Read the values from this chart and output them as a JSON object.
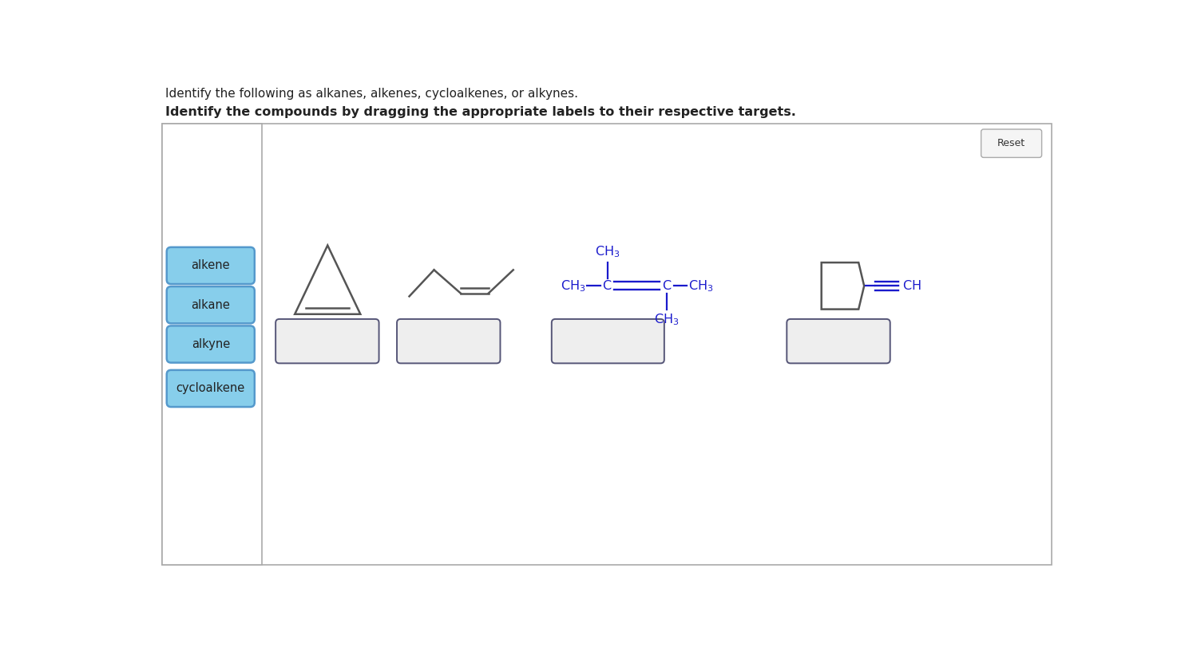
{
  "title_line1": "Identify the following as alkanes, alkenes, cycloalkenes, or alkynes.",
  "title_line2": "Identify the compounds by dragging the appropriate labels to their respective targets.",
  "bg_color": "#ffffff",
  "label_bg": "#87CEEB",
  "label_border": "#5599cc",
  "label_texts": [
    "alkene",
    "alkane",
    "alkyne",
    "cycloalkene"
  ],
  "answer_box_color": "#eeeeee",
  "answer_box_border": "#555577",
  "reset_btn_text": "Reset",
  "molecule_color": "#555555",
  "text_color_dark": "#222222",
  "chem_text_color": "#1a1acc"
}
